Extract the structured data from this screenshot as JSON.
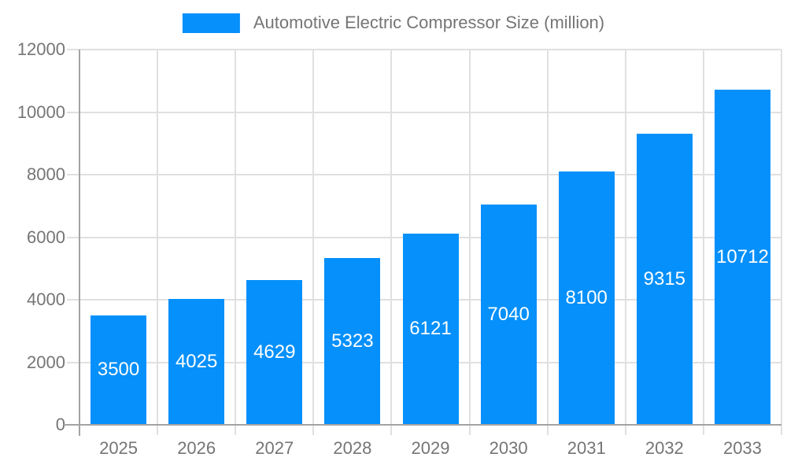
{
  "chart_data": {
    "type": "bar",
    "legend": "Automotive Electric Compressor Size (million)",
    "categories": [
      "2025",
      "2026",
      "2027",
      "2028",
      "2029",
      "2030",
      "2031",
      "2032",
      "2033"
    ],
    "values": [
      3500,
      4025,
      4629,
      5323,
      6121,
      7040,
      8100,
      9315,
      10712
    ],
    "title": "",
    "xlabel": "",
    "ylabel": "",
    "ylim": [
      0,
      12000
    ],
    "yticks": [
      0,
      2000,
      4000,
      6000,
      8000,
      10000,
      12000
    ],
    "grid": true,
    "legend_position": "top-center",
    "bar_value_labels_position": "inside-center",
    "colors": {
      "bar": "#0590FB",
      "bar_label": "#ffffff",
      "axis_line": "#a3a3a3",
      "grid": "#e0e0e0",
      "text": "#757575",
      "background": "#ffffff"
    }
  }
}
